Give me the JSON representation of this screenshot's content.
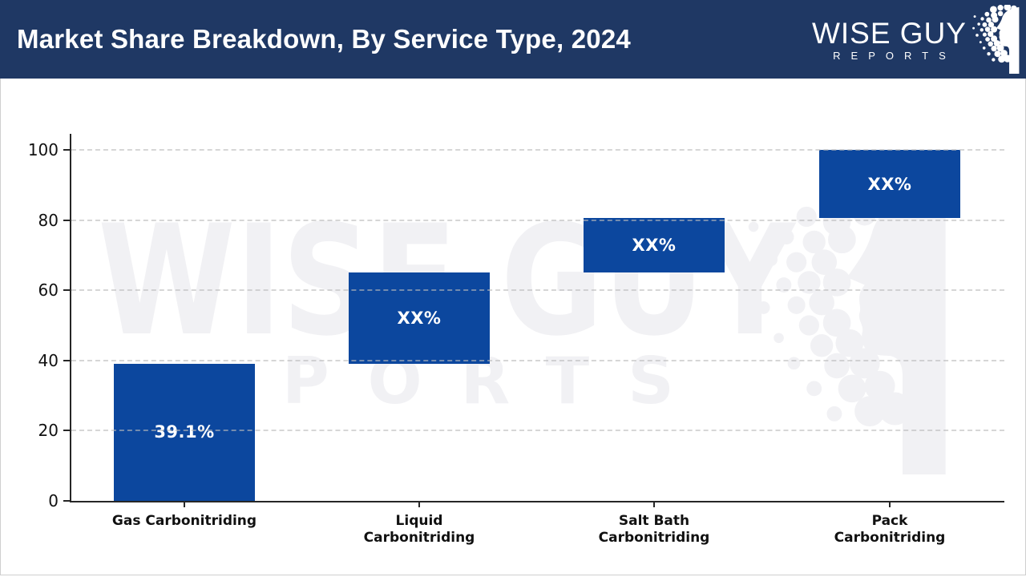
{
  "header": {
    "title": "Market Share Breakdown, By Service Type, 2024",
    "logo": {
      "line1": "WISE GUY",
      "line2": "REPORTS"
    }
  },
  "watermark": {
    "line1": "WISE GUY",
    "line2": "PORTS"
  },
  "colors": {
    "header_bg": "#1F3864",
    "title_text": "#FFFFFF",
    "bar": "#0C479E",
    "bar_label": "#FFFFFF",
    "gridline": "#BBBBBB",
    "axis": "#262626",
    "tick_text": "#111111",
    "watermark": "#F1F1F4",
    "frame_border": "#CFCFCF"
  },
  "chart_data": {
    "type": "bar",
    "subtype": "waterfall",
    "title": "Market Share Breakdown, By Service Type, 2024",
    "categories": [
      "Gas Carbonitriding",
      "Liquid\nCarbonitriding",
      "Salt Bath\nCarbonitriding",
      "Pack\nCarbonitriding"
    ],
    "segments": [
      {
        "category": "Gas Carbonitriding",
        "start": 0,
        "end": 39.1,
        "label": "39.1%"
      },
      {
        "category": "Liquid Carbonitriding",
        "start": 39.1,
        "end": 65,
        "label": "XX%"
      },
      {
        "category": "Salt Bath Carbonitriding",
        "start": 65,
        "end": 80.5,
        "label": "XX%"
      },
      {
        "category": "Pack Carbonitriding",
        "start": 80.5,
        "end": 100,
        "label": "XX%"
      }
    ],
    "ylim": [
      0,
      100
    ],
    "yticks": [
      0,
      20,
      40,
      60,
      80,
      100
    ],
    "xlabel": "",
    "ylabel": "",
    "grid": "horizontal-dashed",
    "legend": "none"
  }
}
